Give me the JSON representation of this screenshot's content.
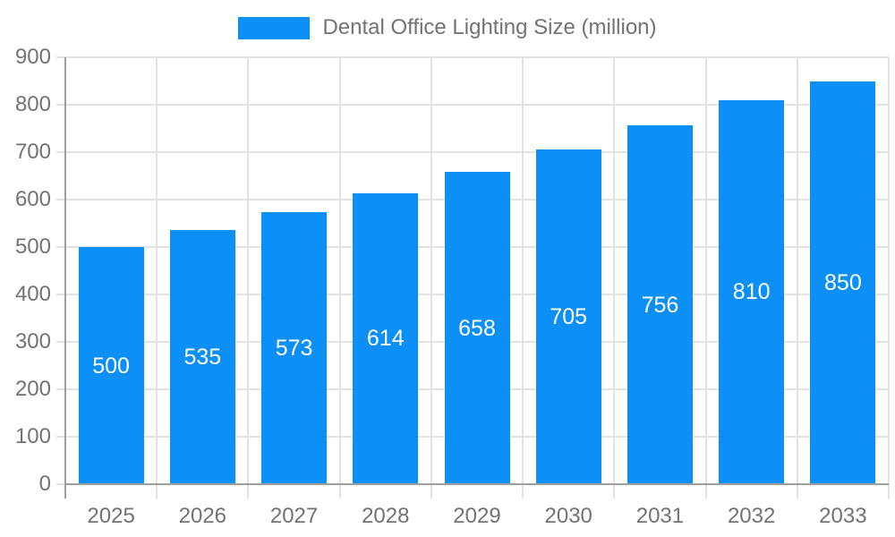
{
  "legend": {
    "label": "Dental Office Lighting Size (million)"
  },
  "chart_data": {
    "type": "bar",
    "title": "Dental Office Lighting Size (million)",
    "series_name": "Dental Office Lighting Size (million)",
    "categories": [
      "2025",
      "2026",
      "2027",
      "2028",
      "2029",
      "2030",
      "2031",
      "2032",
      "2033"
    ],
    "values": [
      500,
      535,
      573,
      614,
      658,
      705,
      756,
      810,
      850
    ],
    "xlabel": "",
    "ylabel": "",
    "ylim": [
      0,
      900
    ],
    "ytick_step": 100,
    "grid": true,
    "legend_position": "top-center",
    "bar_value_labels": "inside-center",
    "colors": {
      "bar": "#0d8ff8",
      "grid": "#e2e2e2",
      "axis": "#9e9e9e",
      "tick_text": "#737373",
      "bar_label_text": "#ffffff",
      "background": "#ffffff"
    }
  }
}
